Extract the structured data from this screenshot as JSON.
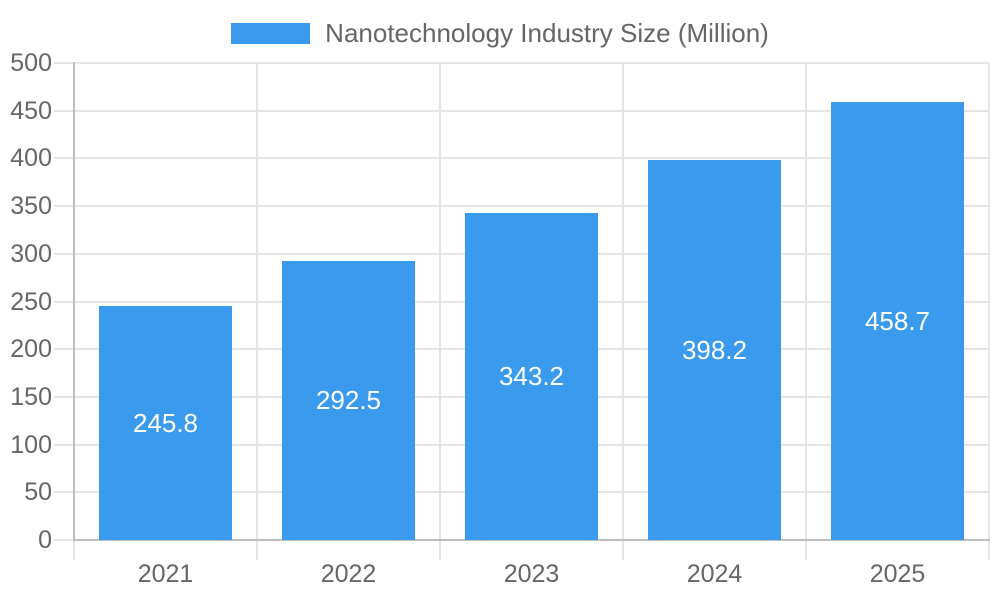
{
  "legend": {
    "label": "Nanotechnology Industry Size (Million)"
  },
  "chart_data": {
    "type": "bar",
    "title": "",
    "categories": [
      "2021",
      "2022",
      "2023",
      "2024",
      "2025"
    ],
    "series": [
      {
        "name": "Nanotechnology Industry Size (Million)",
        "values": [
          245.8,
          292.5,
          343.2,
          398.2,
          458.7
        ]
      }
    ],
    "value_labels": [
      "245.8",
      "292.5",
      "343.2",
      "398.2",
      "458.7"
    ],
    "xlabel": "",
    "ylabel": "",
    "ylim": [
      0,
      500
    ],
    "y_tick_step": 50,
    "y_ticks": [
      0,
      50,
      100,
      150,
      200,
      250,
      300,
      350,
      400,
      450,
      500
    ],
    "grid": true,
    "legend_position": "top",
    "colors": {
      "bar": "#3A9AED",
      "grid": "#E5E5E5",
      "axis": "#BDBDBD",
      "tick_text": "#666666",
      "bar_label_text": "#FFFFFF",
      "background": "#FFFFFF"
    }
  }
}
